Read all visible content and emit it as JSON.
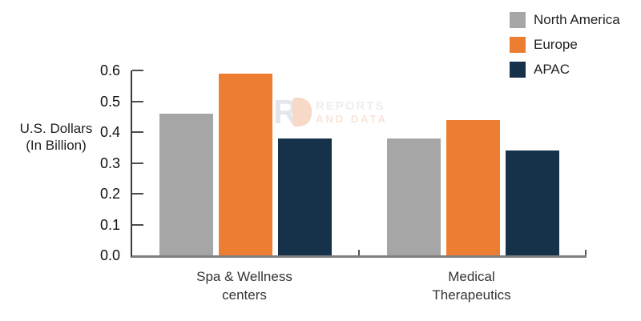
{
  "watermark": {
    "logo_letter": "R",
    "line1": "REPORTS",
    "line2": "AND DATA"
  },
  "chart_data": {
    "type": "bar",
    "title": "",
    "ylabel": "U.S. Dollars (In Billion)",
    "ylabel_lines": [
      "U.S. Dollars",
      "(In Billion)"
    ],
    "categories": [
      "Spa & Wellness centers",
      "Medical Therapeutics"
    ],
    "category_lines": [
      [
        "Spa & Wellness",
        "centers"
      ],
      [
        "Medical",
        "Therapeutics"
      ]
    ],
    "series": [
      {
        "name": "North America",
        "color": "#a6a6a6",
        "values": [
          0.46,
          0.38
        ]
      },
      {
        "name": "Europe",
        "color": "#ed7d31",
        "values": [
          0.59,
          0.44
        ]
      },
      {
        "name": "APAC",
        "color": "#16314a",
        "values": [
          0.38,
          0.34
        ]
      }
    ],
    "ylim": [
      0,
      0.6
    ],
    "yticks": [
      "0.0",
      "0.1",
      "0.2",
      "0.3",
      "0.4",
      "0.5",
      "0.6"
    ],
    "ytick_step": 0.1,
    "legend_position": "top-right",
    "grid": false,
    "axis_colors": {
      "y_axis": "#3b3b3b",
      "x_axis": "#7f7f7f"
    }
  }
}
